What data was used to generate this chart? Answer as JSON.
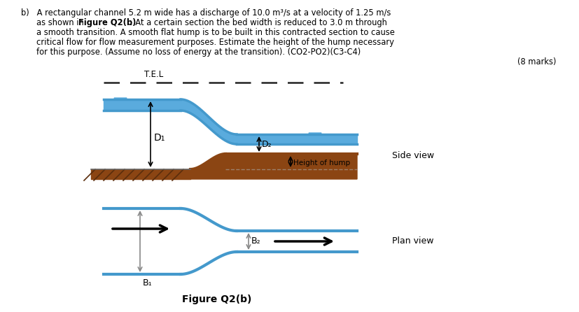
{
  "marks_text": "(8 marks)",
  "figure_label": "Figure Q2(b)",
  "tel_label": "T.E.L",
  "side_view_label": "Side view",
  "plan_view_label": "Plan view",
  "d1_label": "D₁",
  "d2_label": "D₂",
  "height_hump_label": "Height of hump",
  "b1_label": "B₁",
  "b2_label": "B₂",
  "water_color": "#5AABDD",
  "water_outline": "#4499CC",
  "hump_color": "#8B4513",
  "bg_color": "#ffffff",
  "text_color": "#000000",
  "tel_color": "#222222",
  "arrow_color": "#000000",
  "gray_arrow": "#888888"
}
